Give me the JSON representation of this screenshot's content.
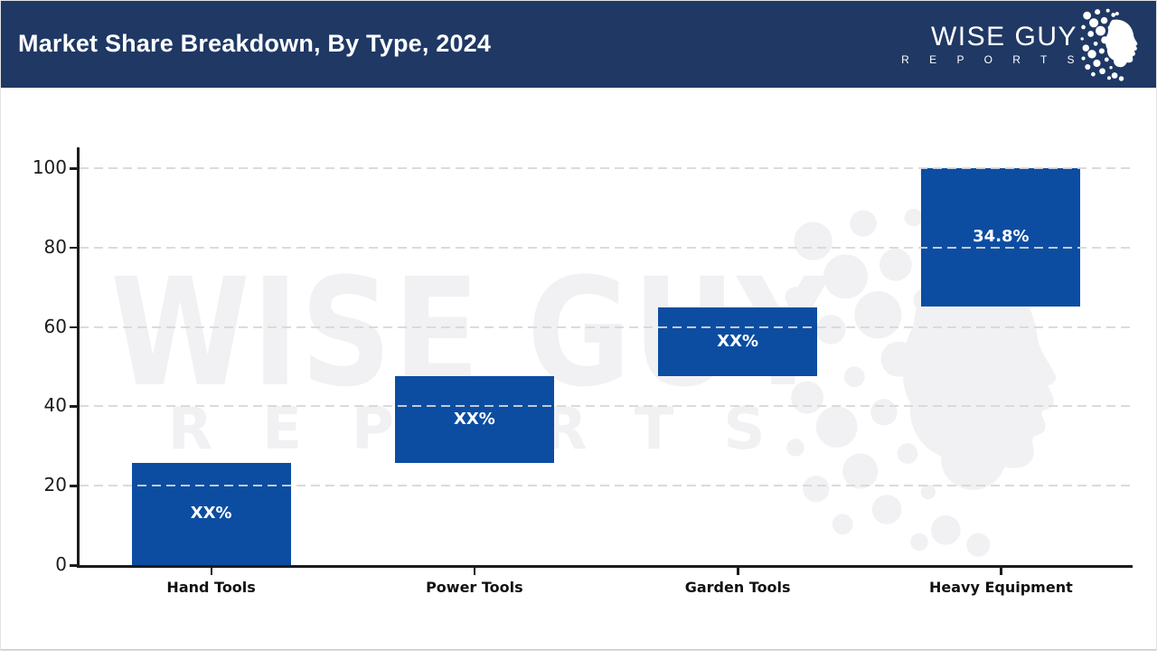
{
  "header": {
    "title": "Market Share Breakdown, By Type, 2024",
    "bg_color": "#1f3864",
    "logo": {
      "line1": "WISE GUY",
      "line2": "R E P O R T S"
    }
  },
  "watermark": {
    "line1": "WISE GUY",
    "line2": "REPORTS"
  },
  "chart_data": {
    "type": "bar",
    "subtype": "floating-waterfall",
    "title": "Market Share Breakdown, By Type, 2024",
    "categories": [
      "Hand Tools",
      "Power Tools",
      "Garden Tools",
      "Heavy Equipment"
    ],
    "segments": [
      {
        "category": "Hand Tools",
        "start": 0,
        "end": 25.8,
        "label": "XX%"
      },
      {
        "category": "Power Tools",
        "start": 25.8,
        "end": 47.7,
        "label": "XX%"
      },
      {
        "category": "Garden Tools",
        "start": 47.7,
        "end": 64.9,
        "label": "XX%"
      },
      {
        "category": "Heavy Equipment",
        "start": 65.2,
        "end": 100,
        "label": "34.8%"
      }
    ],
    "xlabel": "",
    "ylabel": "",
    "yticks": [
      0,
      20,
      40,
      60,
      80,
      100
    ],
    "ylim": [
      0,
      105
    ],
    "grid": "horizontal-dashed",
    "legend": "none",
    "bar_color": "#0c4da2",
    "bar_label_color": "#ffffff",
    "axis_color": "#1c1c1c",
    "grid_color": "#d7d7d7"
  }
}
